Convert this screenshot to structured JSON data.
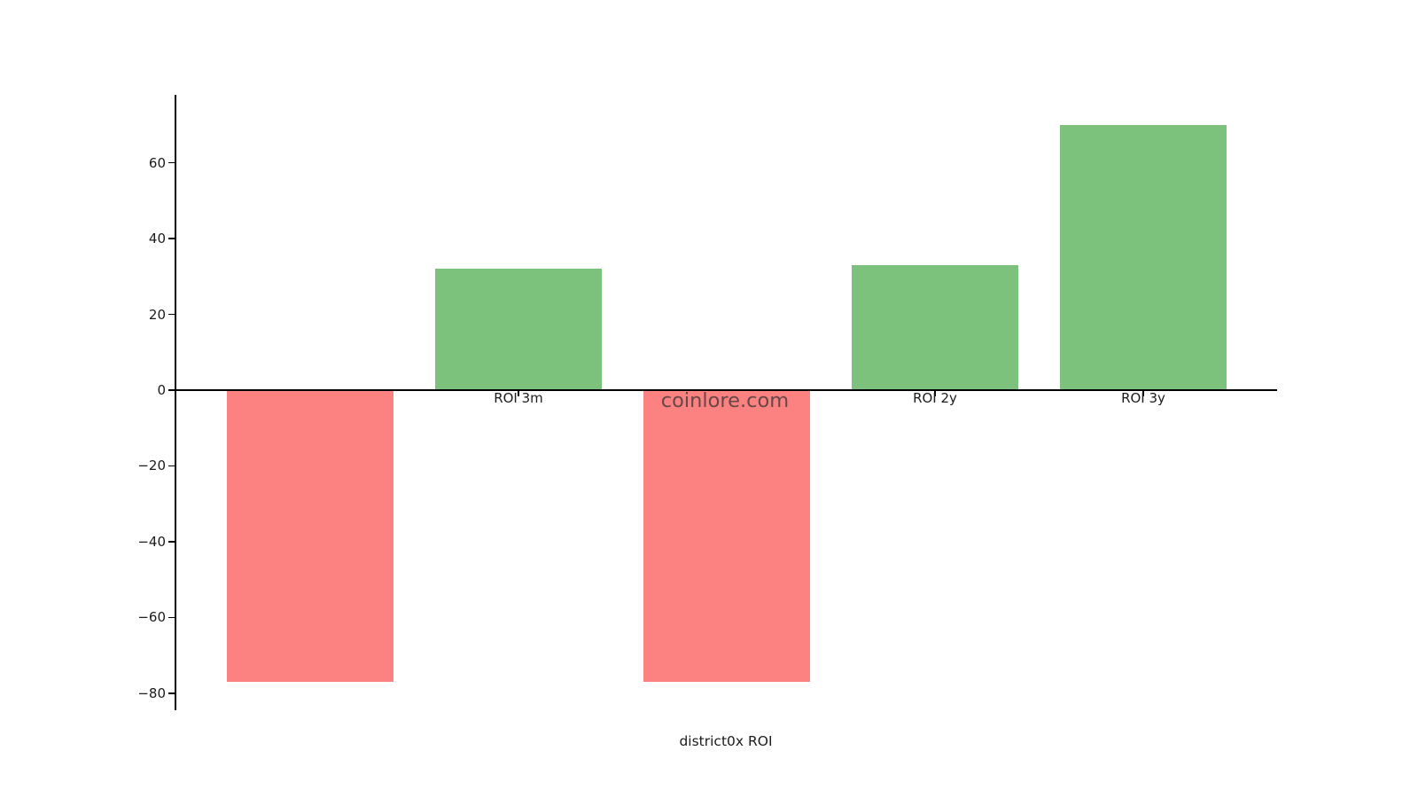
{
  "chart_data": {
    "type": "bar",
    "title": "",
    "xlabel": "district0x ROI",
    "ylabel": "",
    "categories": [
      "",
      "ROI 3m",
      "",
      "ROI 2y",
      "ROI 3y"
    ],
    "values": [
      -77,
      32,
      -77,
      33,
      70
    ],
    "y_tick_values": [
      60,
      40,
      20,
      0,
      -20,
      -40,
      -60,
      -80
    ],
    "y_tick_labels": [
      "60",
      "40",
      "20",
      "0",
      "−20",
      "−40",
      "−60",
      "−80"
    ],
    "ylim": [
      -84.4,
      77.4
    ],
    "grid": false,
    "legend": "none",
    "colors": {
      "positive_bar": "#7cc17c",
      "negative_bar": "#fc8181",
      "axis": "#000000",
      "tick_text": "#1c1c1c"
    }
  },
  "watermark": {
    "text": "coinlore.com"
  }
}
